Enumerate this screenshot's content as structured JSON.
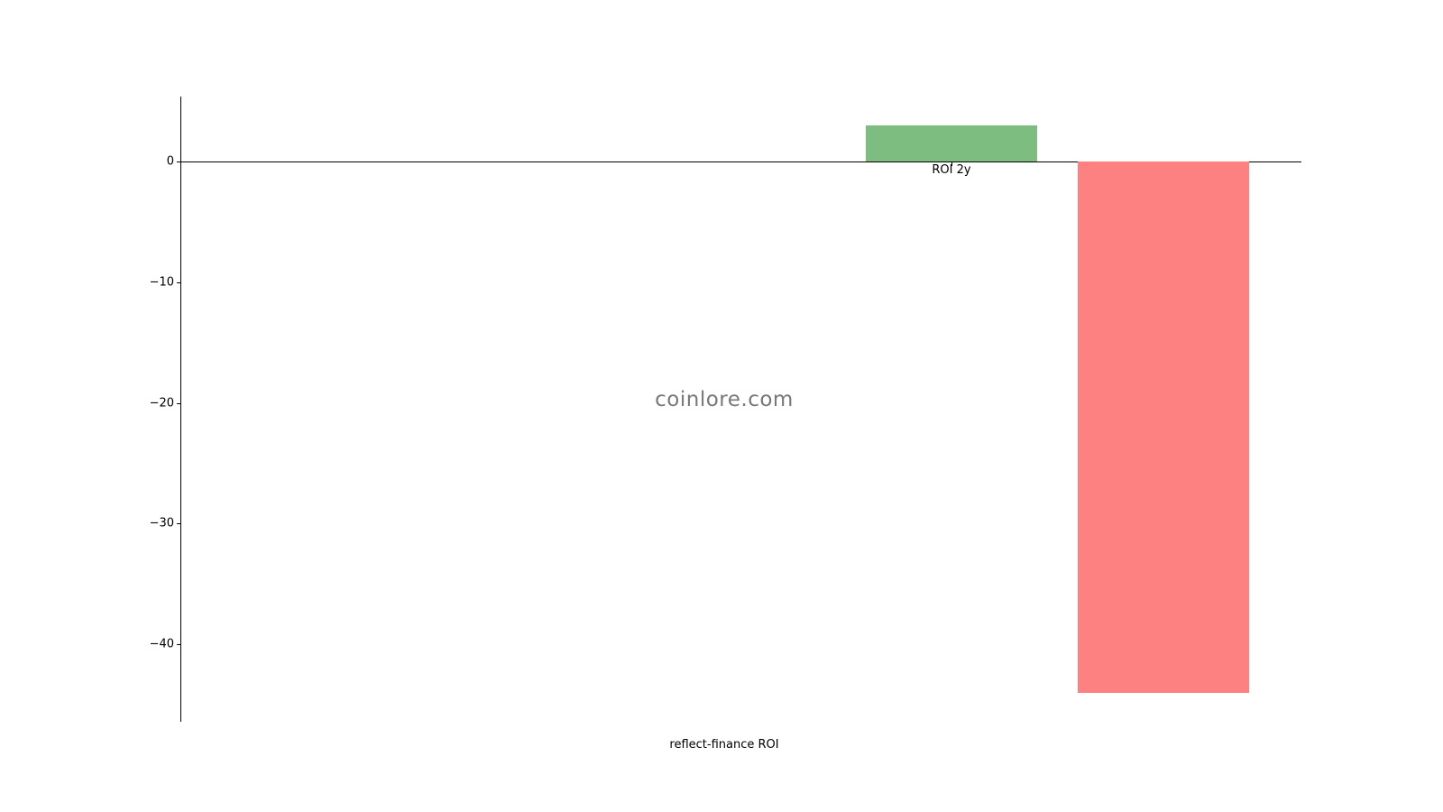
{
  "page": {
    "background": "#ffffff"
  },
  "watermark": {
    "text": "coinlore.com",
    "color": "#787878"
  },
  "chart_data": {
    "type": "bar",
    "title": "",
    "xlabel": "reflect-finance ROI",
    "ylabel": "",
    "categories": [
      "ROI 2y",
      ""
    ],
    "values": [
      3,
      -44
    ],
    "bar_colors": [
      "#7dbe80",
      "#fe8181"
    ],
    "positive_color": "#7dbe80",
    "negative_color": "#fe8181",
    "yticks": [
      0,
      -10,
      -20,
      -30,
      -40
    ],
    "ytick_labels": [
      "0",
      "−10",
      "−20",
      "−30",
      "−40"
    ],
    "ylim": [
      -46.35,
      5.35
    ],
    "grid": false,
    "legend": null,
    "axis_color": "#000000"
  }
}
